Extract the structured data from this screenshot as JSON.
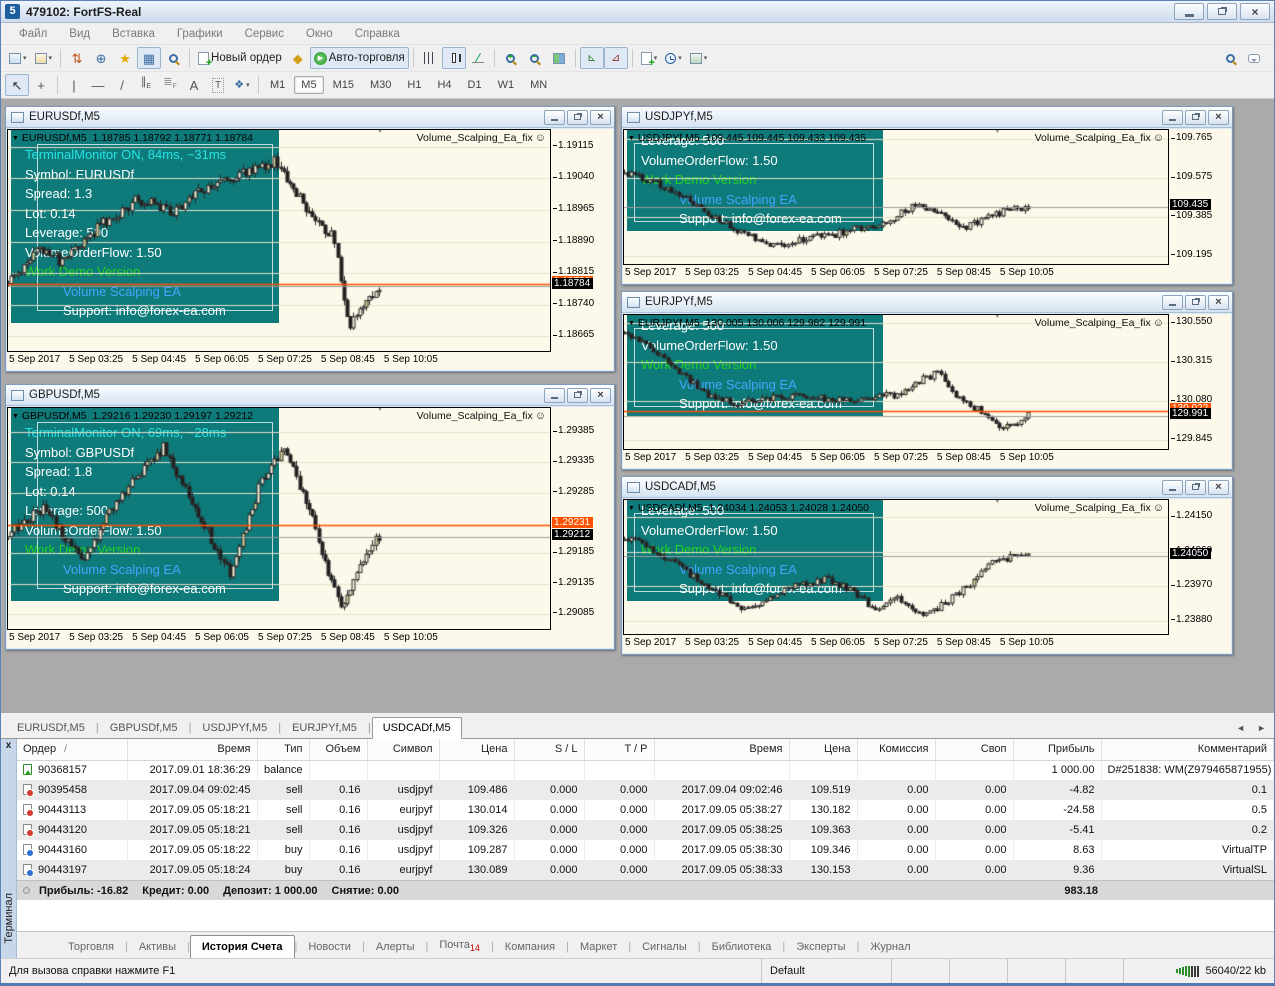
{
  "window": {
    "title": "479102: FortFS-Real",
    "app_icon_text": "5"
  },
  "menu": {
    "items": [
      "Файл",
      "Вид",
      "Вставка",
      "Графики",
      "Сервис",
      "Окно",
      "Справка"
    ]
  },
  "toolbar": {
    "new_order_label": "Новый ордер",
    "auto_trading_label": "Авто-торговля",
    "timeframes": [
      "M1",
      "M5",
      "M15",
      "M30",
      "H1",
      "H4",
      "D1",
      "W1",
      "MN"
    ],
    "active_timeframe": "M5"
  },
  "colors": {
    "panel_teal": "#0f7a7a",
    "chart_bg": "#fdf9ea",
    "order_line_orange": "#ff5200",
    "bid_marker_black": "#000000",
    "candle_up": "#f6f1d8",
    "candle_down": "#1f1f1f"
  },
  "chart_times": [
    "5 Sep 2017",
    "5 Sep 03:25",
    "5 Sep 04:45",
    "5 Sep 06:05",
    "5 Sep 07:25",
    "5 Sep 08:45",
    "5 Sep 10:05"
  ],
  "charts": [
    {
      "title": "EURUSDf,M5",
      "header_symbol": "EURUSDf,M5",
      "ohlc": "1.18785 1.18792 1.18771 1.18784",
      "ea_label": "Volume_Scalping_Ea_fix",
      "ea_smiley": "☺",
      "overlay": {
        "big": true,
        "lines": [
          {
            "text": "TerminalMonitor ON, 84ms, ~31ms",
            "color": "#27e3e3",
            "indent": 0
          },
          {
            "text": "Symbol: EURUSDf",
            "color": "#ffffff",
            "indent": 0
          },
          {
            "text": "Spread: 1.3",
            "color": "#ffffff",
            "indent": 0
          },
          {
            "text": "Lot: 0.14",
            "color": "#ffffff",
            "indent": 0
          },
          {
            "text": "Leverage: 500",
            "color": "#ffffff",
            "indent": 0
          },
          {
            "text": "VolumeOrderFlow: 1.50",
            "color": "#ffffff",
            "indent": 0
          },
          {
            "text": "Work Demo Version",
            "color": "#21d421",
            "indent": 0
          },
          {
            "text": "Volume Scalping EA",
            "color": "#42a6ff",
            "indent": 1
          },
          {
            "text": "Support: info@forex-ea.com",
            "color": "#ffffff",
            "indent": 1
          }
        ]
      },
      "scale": {
        "min": 1.1863,
        "max": 1.19155,
        "labels": [
          "1.19115",
          "1.19040",
          "1.18965",
          "1.18890",
          "1.18815",
          "1.18740",
          "1.18665"
        ]
      },
      "markers": {
        "orange": "1.18788",
        "black": "1.18784"
      },
      "series": {
        "seed": 11,
        "candles": 118,
        "end_frac": 0.69,
        "anchors": [
          [
            0,
            1.1879
          ],
          [
            0.08,
            1.1887
          ],
          [
            0.15,
            1.1884
          ],
          [
            0.25,
            1.1893
          ],
          [
            0.35,
            1.1899
          ],
          [
            0.45,
            1.1896
          ],
          [
            0.55,
            1.1903
          ],
          [
            0.65,
            1.1906
          ],
          [
            0.72,
            1.1908
          ],
          [
            0.78,
            1.19
          ],
          [
            0.84,
            1.1893
          ],
          [
            0.88,
            1.189
          ],
          [
            0.92,
            1.1869
          ],
          [
            0.96,
            1.1874
          ],
          [
            1,
            1.18784
          ]
        ]
      }
    },
    {
      "title": "GBPUSDf,M5",
      "header_symbol": "GBPUSDf,M5",
      "ohlc": "1.29216 1.29230 1.29197 1.29212",
      "ea_label": "Volume_Scalping_Ea_fix",
      "ea_smiley": "☺",
      "overlay": {
        "big": true,
        "lines": [
          {
            "text": "TerminalMonitor ON, 69ms, ~28ms",
            "color": "#27e3e3",
            "indent": 0
          },
          {
            "text": "Symbol: GBPUSDf",
            "color": "#ffffff",
            "indent": 0
          },
          {
            "text": "Spread: 1.8",
            "color": "#ffffff",
            "indent": 0
          },
          {
            "text": "Lot: 0.14",
            "color": "#ffffff",
            "indent": 0
          },
          {
            "text": "Leverage: 500",
            "color": "#ffffff",
            "indent": 0
          },
          {
            "text": "VolumeOrderFlow: 1.50",
            "color": "#ffffff",
            "indent": 0
          },
          {
            "text": "Work Demo Version",
            "color": "#21d421",
            "indent": 0
          },
          {
            "text": "Volume Scalping EA",
            "color": "#42a6ff",
            "indent": 1
          },
          {
            "text": "Support: info@forex-ea.com",
            "color": "#ffffff",
            "indent": 1
          }
        ]
      },
      "scale": {
        "min": 1.2906,
        "max": 1.29425,
        "labels": [
          "1.29385",
          "1.29335",
          "1.29285",
          "1.29185",
          "1.29135",
          "1.29085"
        ]
      },
      "markers": {
        "orange": "1.29231",
        "black": "1.29212"
      },
      "series": {
        "seed": 23,
        "candles": 118,
        "end_frac": 0.69,
        "anchors": [
          [
            0,
            1.2922
          ],
          [
            0.1,
            1.2926
          ],
          [
            0.2,
            1.2917
          ],
          [
            0.3,
            1.2928
          ],
          [
            0.42,
            1.2936
          ],
          [
            0.52,
            1.2924
          ],
          [
            0.6,
            1.2915
          ],
          [
            0.68,
            1.293
          ],
          [
            0.74,
            1.2936
          ],
          [
            0.8,
            1.2928
          ],
          [
            0.86,
            1.2916
          ],
          [
            0.9,
            1.2909
          ],
          [
            0.95,
            1.2917
          ],
          [
            1,
            1.29212
          ]
        ]
      }
    },
    {
      "title": "USDJPYf,M5",
      "header_symbol": "USDJPYf,M5",
      "ohlc": "109.445 109.445 109.433 109.435",
      "ea_label": "Volume_Scalping_Ea_fix",
      "ea_smiley": "☺",
      "overlay": {
        "big": false,
        "lines": [
          {
            "text": "Leverage: 500",
            "color": "#ffffff",
            "indent": 0
          },
          {
            "text": "VolumeOrderFlow: 1.50",
            "color": "#ffffff",
            "indent": 0
          },
          {
            "text": "Work Demo Version",
            "color": "#21d421",
            "indent": 0
          },
          {
            "text": "Volume Scalping EA",
            "color": "#42a6ff",
            "indent": 1
          },
          {
            "text": "Support: info@forex-ea.com",
            "color": "#ffffff",
            "indent": 1
          }
        ]
      },
      "scale": {
        "min": 109.155,
        "max": 109.81,
        "labels": [
          "109.765",
          "109.575",
          "109.385",
          "109.195"
        ]
      },
      "markers": {
        "black": "109.435"
      },
      "series": {
        "seed": 37,
        "candles": 112,
        "end_frac": 0.75,
        "anchors": [
          [
            0,
            109.6
          ],
          [
            0.08,
            109.55
          ],
          [
            0.15,
            109.48
          ],
          [
            0.22,
            109.38
          ],
          [
            0.3,
            109.3
          ],
          [
            0.38,
            109.24
          ],
          [
            0.45,
            109.28
          ],
          [
            0.52,
            109.3
          ],
          [
            0.58,
            109.33
          ],
          [
            0.65,
            109.36
          ],
          [
            0.72,
            109.45
          ],
          [
            0.78,
            109.4
          ],
          [
            0.84,
            109.33
          ],
          [
            0.9,
            109.38
          ],
          [
            0.95,
            109.42
          ],
          [
            1,
            109.435
          ]
        ]
      }
    },
    {
      "title": "EURJPYf,M5",
      "header_symbol": "EURJPYf,M5",
      "ohlc": "130.005 130.006 129.982 129.991",
      "ea_label": "Volume_Scalping_Ea_fix",
      "ea_smiley": "☺",
      "overlay": {
        "big": false,
        "lines": [
          {
            "text": "Leverage: 500",
            "color": "#ffffff",
            "indent": 0
          },
          {
            "text": "VolumeOrderFlow: 1.50",
            "color": "#ffffff",
            "indent": 0
          },
          {
            "text": "Work Demo Version",
            "color": "#21d421",
            "indent": 0
          },
          {
            "text": "Volume Scalping EA",
            "color": "#42a6ff",
            "indent": 1
          },
          {
            "text": "Support: info@forex-ea.com",
            "color": "#ffffff",
            "indent": 1
          }
        ]
      },
      "scale": {
        "min": 129.79,
        "max": 130.6,
        "labels": [
          "130.550",
          "130.315",
          "130.080",
          "129.845"
        ]
      },
      "markers": {
        "orange": "130.022",
        "black": "129.991"
      },
      "series": {
        "seed": 41,
        "candles": 112,
        "end_frac": 0.75,
        "anchors": [
          [
            0,
            130.48
          ],
          [
            0.06,
            130.42
          ],
          [
            0.12,
            130.3
          ],
          [
            0.2,
            130.12
          ],
          [
            0.28,
            130.06
          ],
          [
            0.36,
            130.1
          ],
          [
            0.44,
            130.12
          ],
          [
            0.52,
            130.08
          ],
          [
            0.6,
            130.1
          ],
          [
            0.68,
            130.12
          ],
          [
            0.74,
            130.22
          ],
          [
            0.78,
            130.25
          ],
          [
            0.82,
            130.1
          ],
          [
            0.88,
            130.02
          ],
          [
            0.93,
            129.9
          ],
          [
            1,
            129.991
          ]
        ]
      }
    },
    {
      "title": "USDCADf,M5",
      "header_symbol": "USDCADf,M5",
      "ohlc": "1.24034 1.24053 1.24028 1.24050",
      "ea_label": "Volume_Scalping_Ea_fix",
      "ea_smiley": "☺",
      "overlay": {
        "big": false,
        "lines": [
          {
            "text": "Leverage: 500",
            "color": "#ffffff",
            "indent": 0
          },
          {
            "text": "VolumeOrderFlow: 1.50",
            "color": "#ffffff",
            "indent": 0
          },
          {
            "text": "Work Demo Version",
            "color": "#21d421",
            "indent": 0
          },
          {
            "text": "Volume Scalping EA",
            "color": "#42a6ff",
            "indent": 1
          },
          {
            "text": "Support: info@forex-ea.com",
            "color": "#ffffff",
            "indent": 1
          }
        ]
      },
      "scale": {
        "min": 1.23845,
        "max": 1.24195,
        "labels": [
          "1.24150",
          "1.24060",
          "1.23970",
          "1.23880"
        ]
      },
      "markers": {
        "black": "1.24050"
      },
      "series": {
        "seed": 53,
        "candles": 112,
        "end_frac": 0.75,
        "anchors": [
          [
            0,
            1.241
          ],
          [
            0.08,
            1.2406
          ],
          [
            0.15,
            1.2401
          ],
          [
            0.22,
            1.2396
          ],
          [
            0.3,
            1.2391
          ],
          [
            0.36,
            1.2394
          ],
          [
            0.42,
            1.2397
          ],
          [
            0.5,
            1.2399
          ],
          [
            0.56,
            1.2396
          ],
          [
            0.62,
            1.2391
          ],
          [
            0.68,
            1.2394
          ],
          [
            0.74,
            1.2389
          ],
          [
            0.8,
            1.2393
          ],
          [
            0.86,
            1.2398
          ],
          [
            0.92,
            1.2404
          ],
          [
            1,
            1.2405
          ]
        ]
      }
    }
  ],
  "chart_tabs": {
    "items": [
      "EURUSDf,M5",
      "GBPUSDf,M5",
      "USDJPYf,M5",
      "EURJPYf,M5",
      "USDCADf,M5"
    ],
    "active": "USDCADf,M5"
  },
  "terminal": {
    "panel_label": "Терминал",
    "sort_indicator": "/",
    "columns": [
      "Ордер",
      "Время",
      "Тип",
      "Объем",
      "Символ",
      "Цена",
      "S / L",
      "T / P",
      "Время",
      "Цена",
      "Комиссия",
      "Своп",
      "Прибыль",
      "Комментарий"
    ],
    "rows": [
      {
        "icon": "balance",
        "cells": [
          "90368157",
          "2017.09.01 18:36:29",
          "balance",
          "",
          "",
          "",
          "",
          "",
          "",
          "",
          "",
          "",
          "1 000.00",
          "D#251838: WM(Z979465871955)"
        ]
      },
      {
        "icon": "sell",
        "cells": [
          "90395458",
          "2017.09.04 09:02:45",
          "sell",
          "0.16",
          "usdjpyf",
          "109.486",
          "0.000",
          "0.000",
          "2017.09.04 09:02:46",
          "109.519",
          "0.00",
          "0.00",
          "-4.82",
          "0.1"
        ]
      },
      {
        "icon": "sell",
        "cells": [
          "90443113",
          "2017.09.05 05:18:21",
          "sell",
          "0.16",
          "eurjpyf",
          "130.014",
          "0.000",
          "0.000",
          "2017.09.05 05:38:27",
          "130.182",
          "0.00",
          "0.00",
          "-24.58",
          "0.5"
        ]
      },
      {
        "icon": "sell",
        "cells": [
          "90443120",
          "2017.09.05 05:18:21",
          "sell",
          "0.16",
          "usdjpyf",
          "109.326",
          "0.000",
          "0.000",
          "2017.09.05 05:38:25",
          "109.363",
          "0.00",
          "0.00",
          "-5.41",
          "0.2"
        ]
      },
      {
        "icon": "buy",
        "cells": [
          "90443160",
          "2017.09.05 05:18:22",
          "buy",
          "0.16",
          "usdjpyf",
          "109.287",
          "0.000",
          "0.000",
          "2017.09.05 05:38:30",
          "109.346",
          "0.00",
          "0.00",
          "8.63",
          "VirtualTP"
        ]
      },
      {
        "icon": "buy",
        "cells": [
          "90443197",
          "2017.09.05 05:18:24",
          "buy",
          "0.16",
          "eurjpyf",
          "130.089",
          "0.000",
          "0.000",
          "2017.09.05 05:38:33",
          "130.153",
          "0.00",
          "0.00",
          "9.36",
          "VirtualSL"
        ]
      }
    ],
    "summary": {
      "parts": [
        "Прибыль: -16.82",
        "Кредит: 0.00",
        "Депозит: 1 000.00",
        "Снятие: 0.00"
      ],
      "total": "983.18"
    },
    "tabs": [
      {
        "label": "Торговля"
      },
      {
        "label": "Активы"
      },
      {
        "label": "История Счета"
      },
      {
        "label": "Новости"
      },
      {
        "label": "Алерты"
      },
      {
        "label": "Почта",
        "badge": "14"
      },
      {
        "label": "Компания"
      },
      {
        "label": "Маркет"
      },
      {
        "label": "Сигналы"
      },
      {
        "label": "Библиотека"
      },
      {
        "label": "Эксперты"
      },
      {
        "label": "Журнал"
      }
    ],
    "active_tab": "История Счета"
  },
  "statusbar": {
    "help": "Для вызова справки нажмите F1",
    "profile": "Default",
    "traffic": "56040/22 kb"
  }
}
